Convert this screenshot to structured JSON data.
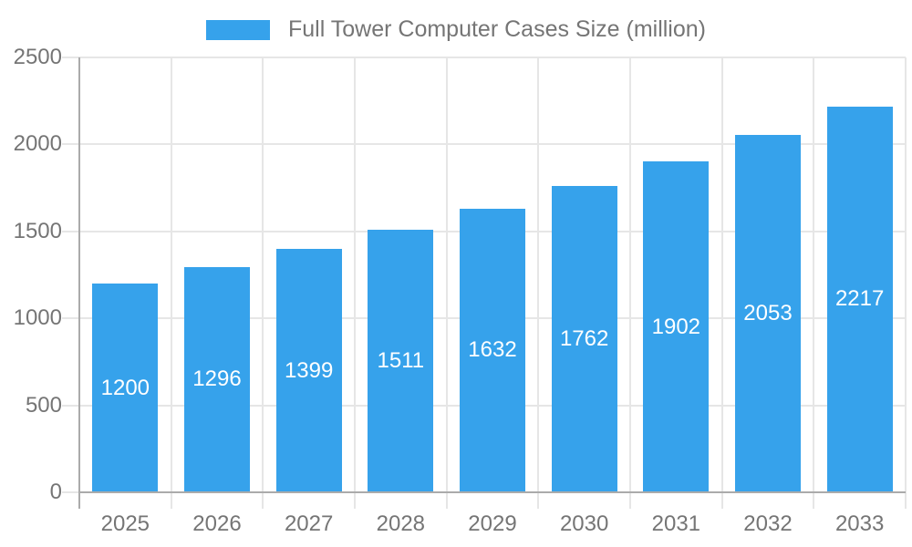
{
  "legend": {
    "swatch_icon": "legend-color-swatch",
    "label": "Full Tower Computer Cases Size (million)"
  },
  "chart_data": {
    "type": "bar",
    "title": "Full Tower Computer Cases Size (million)",
    "series_name": "Full Tower Computer Cases Size (million)",
    "categories": [
      "2025",
      "2026",
      "2027",
      "2028",
      "2029",
      "2030",
      "2031",
      "2032",
      "2033"
    ],
    "values": [
      1200,
      1296,
      1399,
      1511,
      1632,
      1762,
      1902,
      2053,
      2217
    ],
    "xlabel": "",
    "ylabel": "",
    "ylim": [
      0,
      2500
    ],
    "yticks": [
      0,
      500,
      1000,
      1500,
      2000,
      2500
    ],
    "grid": true,
    "legend_position": "top",
    "bar_color": "#36A2EB",
    "value_label_color": "#FFFFFF",
    "axis_text_color": "#757575",
    "gridline_color": "#E6E6E6",
    "axis_line_color": "#ABABAB"
  }
}
